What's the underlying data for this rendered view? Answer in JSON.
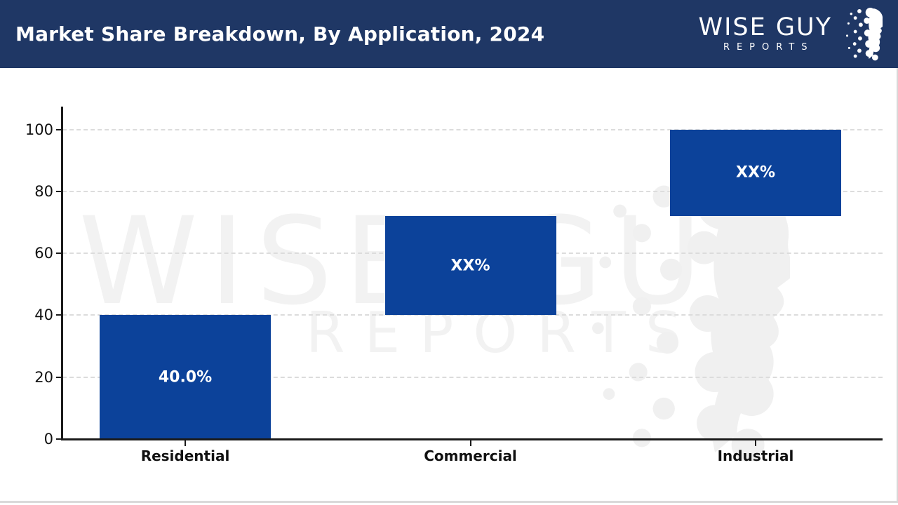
{
  "header": {
    "title": "Market Share Breakdown, By Application, 2024",
    "bg_color": "#1f3765",
    "logo_line1": "WISE GUY",
    "logo_line2": "REPORTS"
  },
  "watermark": {
    "line1": "WISE GUY",
    "line2": "REPORTS"
  },
  "chart_data": {
    "type": "bar",
    "subtype": "waterfall",
    "title": "Market Share Breakdown, By Application, 2024",
    "categories": [
      "Residential",
      "Commercial",
      "Industrial"
    ],
    "series": [
      {
        "name": "Market Share (%)",
        "segments": [
          {
            "category": "Residential",
            "start": 0,
            "end": 40,
            "label": "40.0%"
          },
          {
            "category": "Commercial",
            "start": 40,
            "end": 72,
            "label": "XX%"
          },
          {
            "category": "Industrial",
            "start": 72,
            "end": 100,
            "label": "XX%"
          }
        ]
      }
    ],
    "yticks": [
      0,
      20,
      40,
      60,
      80,
      100
    ],
    "ylim": [
      0,
      107
    ],
    "xlabel": "",
    "ylabel": "",
    "grid": "horizontal dashed",
    "legend": "none",
    "bar_color": "#0c429a",
    "bar_label_color": "#ffffff",
    "axis_color": "#1a1a1a",
    "grid_color": "#dcdcdc"
  }
}
